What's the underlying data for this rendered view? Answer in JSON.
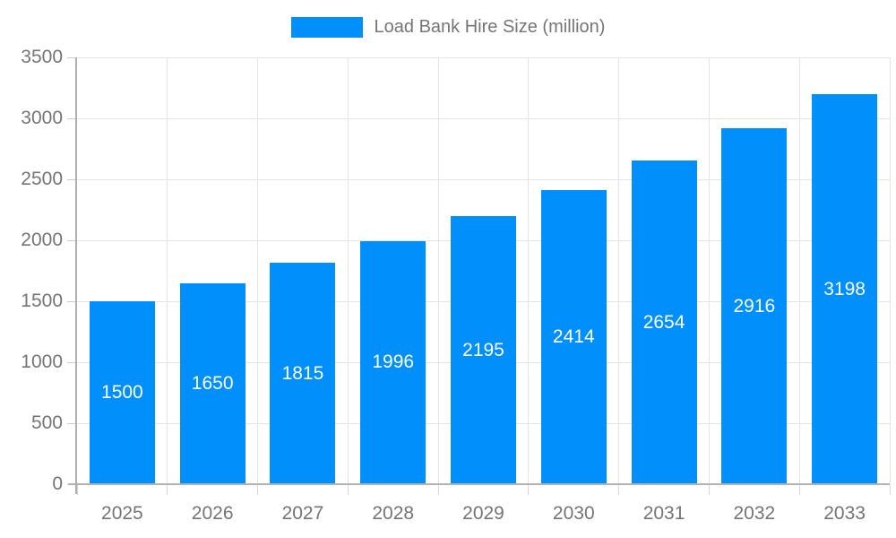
{
  "legend": {
    "label": "Load Bank Hire Size (million)",
    "swatch_color": "#008FFB"
  },
  "chart_data": {
    "type": "bar",
    "title": "",
    "xlabel": "",
    "ylabel": "",
    "categories": [
      "2025",
      "2026",
      "2027",
      "2028",
      "2029",
      "2030",
      "2031",
      "2032",
      "2033"
    ],
    "series": [
      {
        "name": "Load Bank Hire Size (million)",
        "values": [
          1500,
          1650,
          1815,
          1996,
          2195,
          2414,
          2654,
          2916,
          3198
        ]
      }
    ],
    "value_labels": [
      "1500",
      "1650",
      "1815",
      "1996",
      "2195",
      "2414",
      "2654",
      "2916",
      "3198"
    ],
    "ylim": [
      0,
      3500
    ],
    "yticks": [
      0,
      500,
      1000,
      1500,
      2000,
      2500,
      3000,
      3500
    ],
    "grid": true,
    "legend_position": "top",
    "colors": {
      "bar": "#008FFB",
      "value_label": "#ffffff",
      "axis_text": "#757575",
      "gridline": "#e4e4e4",
      "axis_line": "#b2b2b2",
      "background": "#ffffff"
    }
  }
}
